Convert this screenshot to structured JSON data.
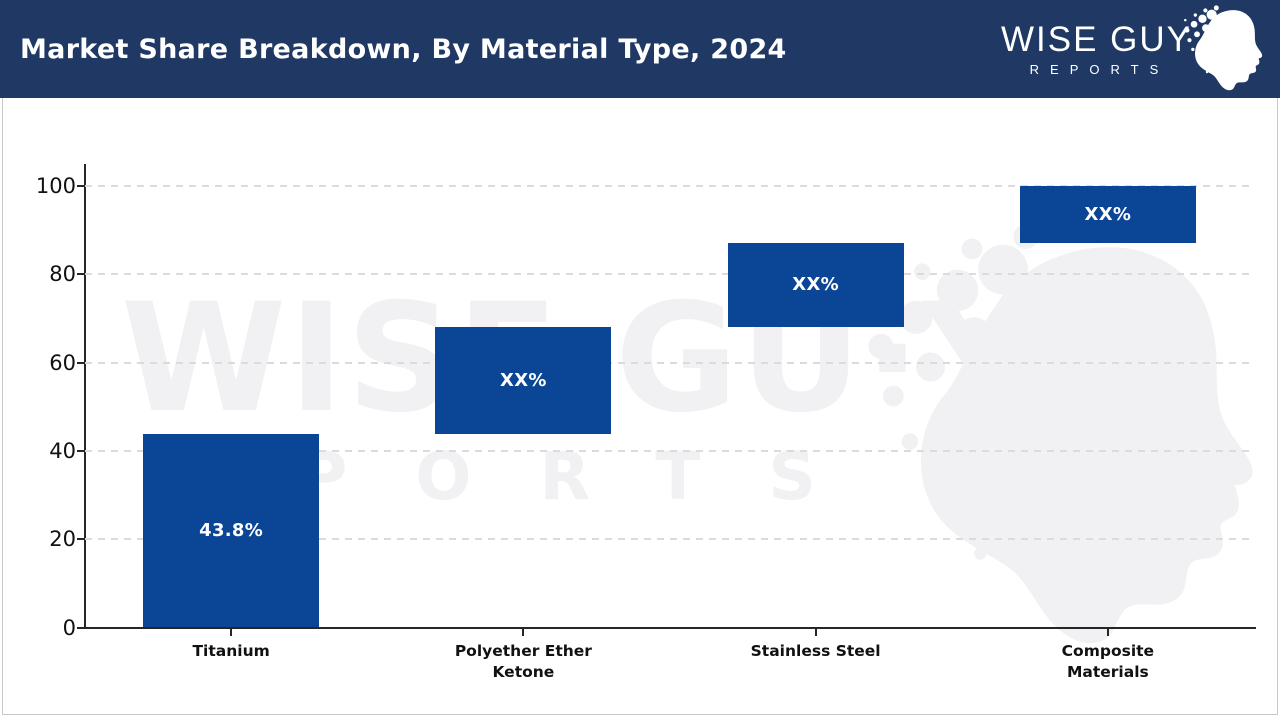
{
  "header": {
    "title": "Market Share Breakdown, By Material Type, 2024",
    "logo": {
      "name": "WISE GUY",
      "subtext": "REPORTS"
    }
  },
  "watermark": {
    "line1": "WISE GU·Y",
    "line2": "PORTS"
  },
  "chart_data": {
    "type": "bar",
    "variant": "waterfall",
    "title": "Market Share Breakdown, By Material Type, 2024",
    "categories": [
      [
        "Titanium"
      ],
      [
        "Polyether Ether",
        "Ketone"
      ],
      [
        "Stainless Steel"
      ],
      [
        "Composite",
        "Materials"
      ]
    ],
    "series": [
      {
        "category": "Titanium",
        "start": 0,
        "end": 43.8,
        "label": "43.8%"
      },
      {
        "category": "Polyether Ether Ketone",
        "start": 43.8,
        "end": 68,
        "label": "XX%"
      },
      {
        "category": "Stainless Steel",
        "start": 68,
        "end": 87.2,
        "label": "XX%"
      },
      {
        "category": "Composite Materials",
        "start": 87.2,
        "end": 100,
        "label": "XX%"
      }
    ],
    "xlabel": "",
    "ylabel": "",
    "yticks": [
      0,
      20,
      40,
      60,
      80,
      100
    ],
    "ylim": [
      0,
      105
    ],
    "grid": {
      "axis": "y",
      "style": "dashed",
      "color": "#dbdbdb"
    },
    "legend": null,
    "bar_color": "#0b4596",
    "bar_label_color": "#ffffff",
    "header_color": "#1f3864",
    "watermark_color": "#f1f1f3"
  }
}
